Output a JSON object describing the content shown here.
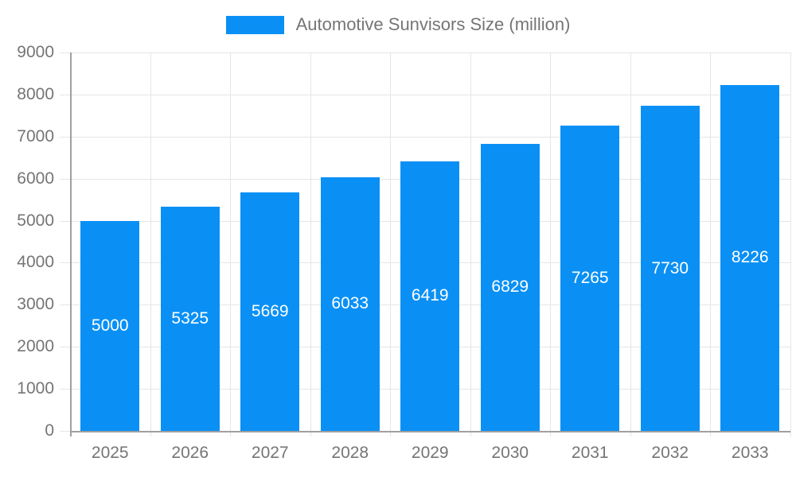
{
  "chart_data": {
    "type": "bar",
    "title": "Automotive Sunvisors Size (million)",
    "categories": [
      "2025",
      "2026",
      "2027",
      "2028",
      "2029",
      "2030",
      "2031",
      "2032",
      "2033"
    ],
    "values": [
      5000,
      5325,
      5669,
      6033,
      6419,
      6829,
      7265,
      7730,
      8226
    ],
    "xlabel": "",
    "ylabel": "",
    "ylim": [
      0,
      9000
    ],
    "ytick_step": 1000,
    "ytick_labels": [
      "0",
      "1000",
      "2000",
      "3000",
      "4000",
      "5000",
      "6000",
      "7000",
      "8000",
      "9000"
    ],
    "grid": true,
    "legend_position": "top",
    "bar_value_labels_visible": true
  },
  "style": {
    "bar_color": "#0a90f5",
    "bar_label_color": "#ffffff",
    "title_color": "#757575",
    "axis_text_color": "#757575",
    "gridline_color": "#e6e6e6",
    "axis_line_color": "#a0a0a0",
    "background_color": "#ffffff"
  }
}
